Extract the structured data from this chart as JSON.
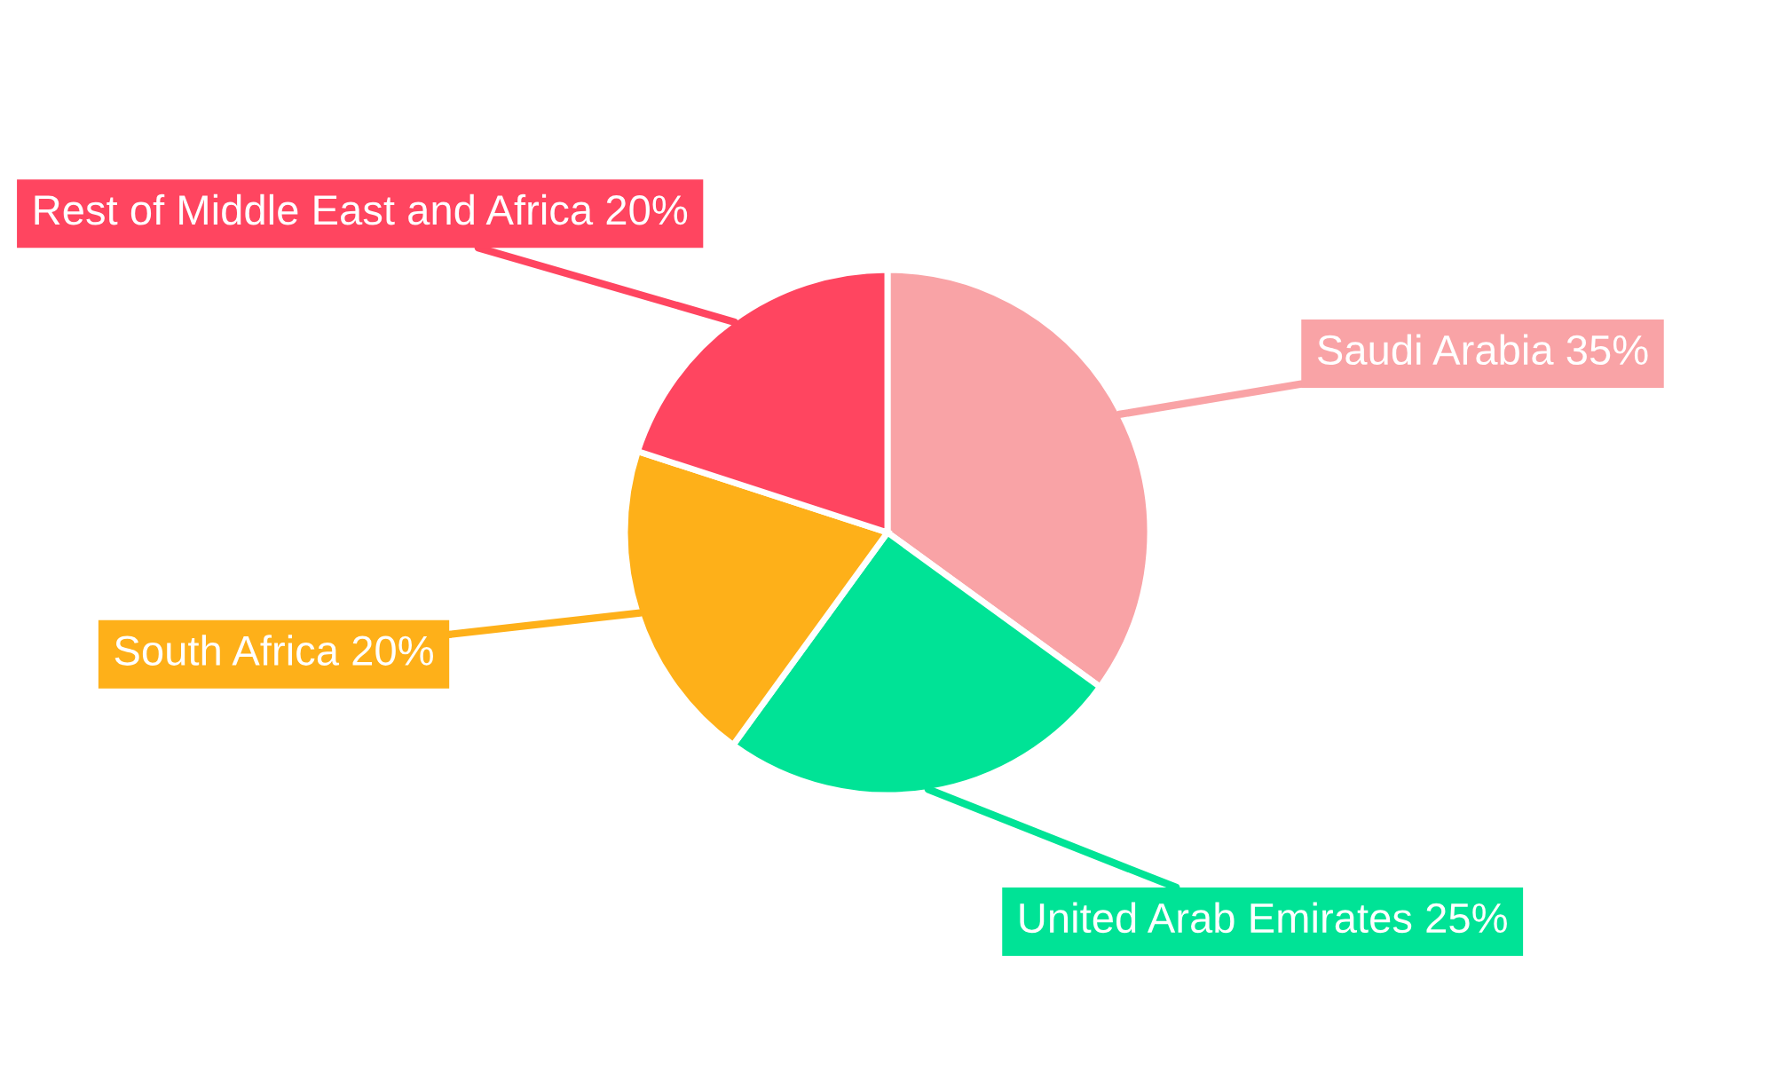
{
  "chart_data": {
    "type": "pie",
    "categories": [
      "Saudi Arabia",
      "United Arab Emirates",
      "South Africa",
      "Rest of Middle East and Africa"
    ],
    "values": [
      35,
      25,
      20,
      20
    ],
    "value_labels": [
      "35%",
      "25%",
      "20%",
      "20%"
    ],
    "colors": [
      "#f9a3a6",
      "#00e396",
      "#feb019",
      "#ff4560"
    ],
    "legend": false
  }
}
